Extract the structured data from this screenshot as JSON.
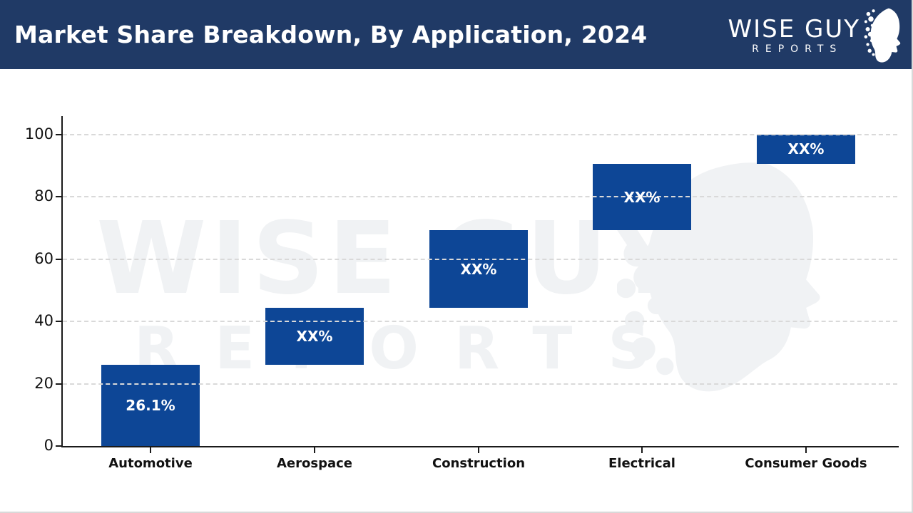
{
  "header": {
    "title": "Market Share Breakdown, By Application, 2024",
    "logo": {
      "line1": "WISE GUY",
      "line2": "REPORTS"
    }
  },
  "watermark": {
    "line1": "WISE GUY",
    "line2": "REPORTS"
  },
  "colors": {
    "header_bg": "#203A66",
    "bar": "#0D4696",
    "grid": "#D9D9D9",
    "axis": "#1A1A1A",
    "bar_label_text": "#FFFFFF",
    "watermark": "#F0F2F4"
  },
  "chart_data": {
    "type": "bar",
    "subtype": "waterfall",
    "title": "Market Share Breakdown, By Application, 2024",
    "categories": [
      "Automotive",
      "Aerospace",
      "Construction",
      "Electrical",
      "Consumer Goods"
    ],
    "segments": [
      {
        "category": "Automotive",
        "start": 0,
        "end": 26.1,
        "label": "26.1%"
      },
      {
        "category": "Aerospace",
        "start": 26.1,
        "end": 44.4,
        "label": "XX%"
      },
      {
        "category": "Construction",
        "start": 44.4,
        "end": 69.2,
        "label": "XX%"
      },
      {
        "category": "Electrical",
        "start": 69.2,
        "end": 90.5,
        "label": "XX%"
      },
      {
        "category": "Consumer Goods",
        "start": 90.5,
        "end": 100,
        "label": "XX%"
      }
    ],
    "y_ticks": [
      0,
      20,
      40,
      60,
      80,
      100
    ],
    "ylim": [
      0,
      105
    ],
    "xlabel": "",
    "ylabel": "",
    "grid": "horizontal-dashed",
    "legend": "none"
  }
}
